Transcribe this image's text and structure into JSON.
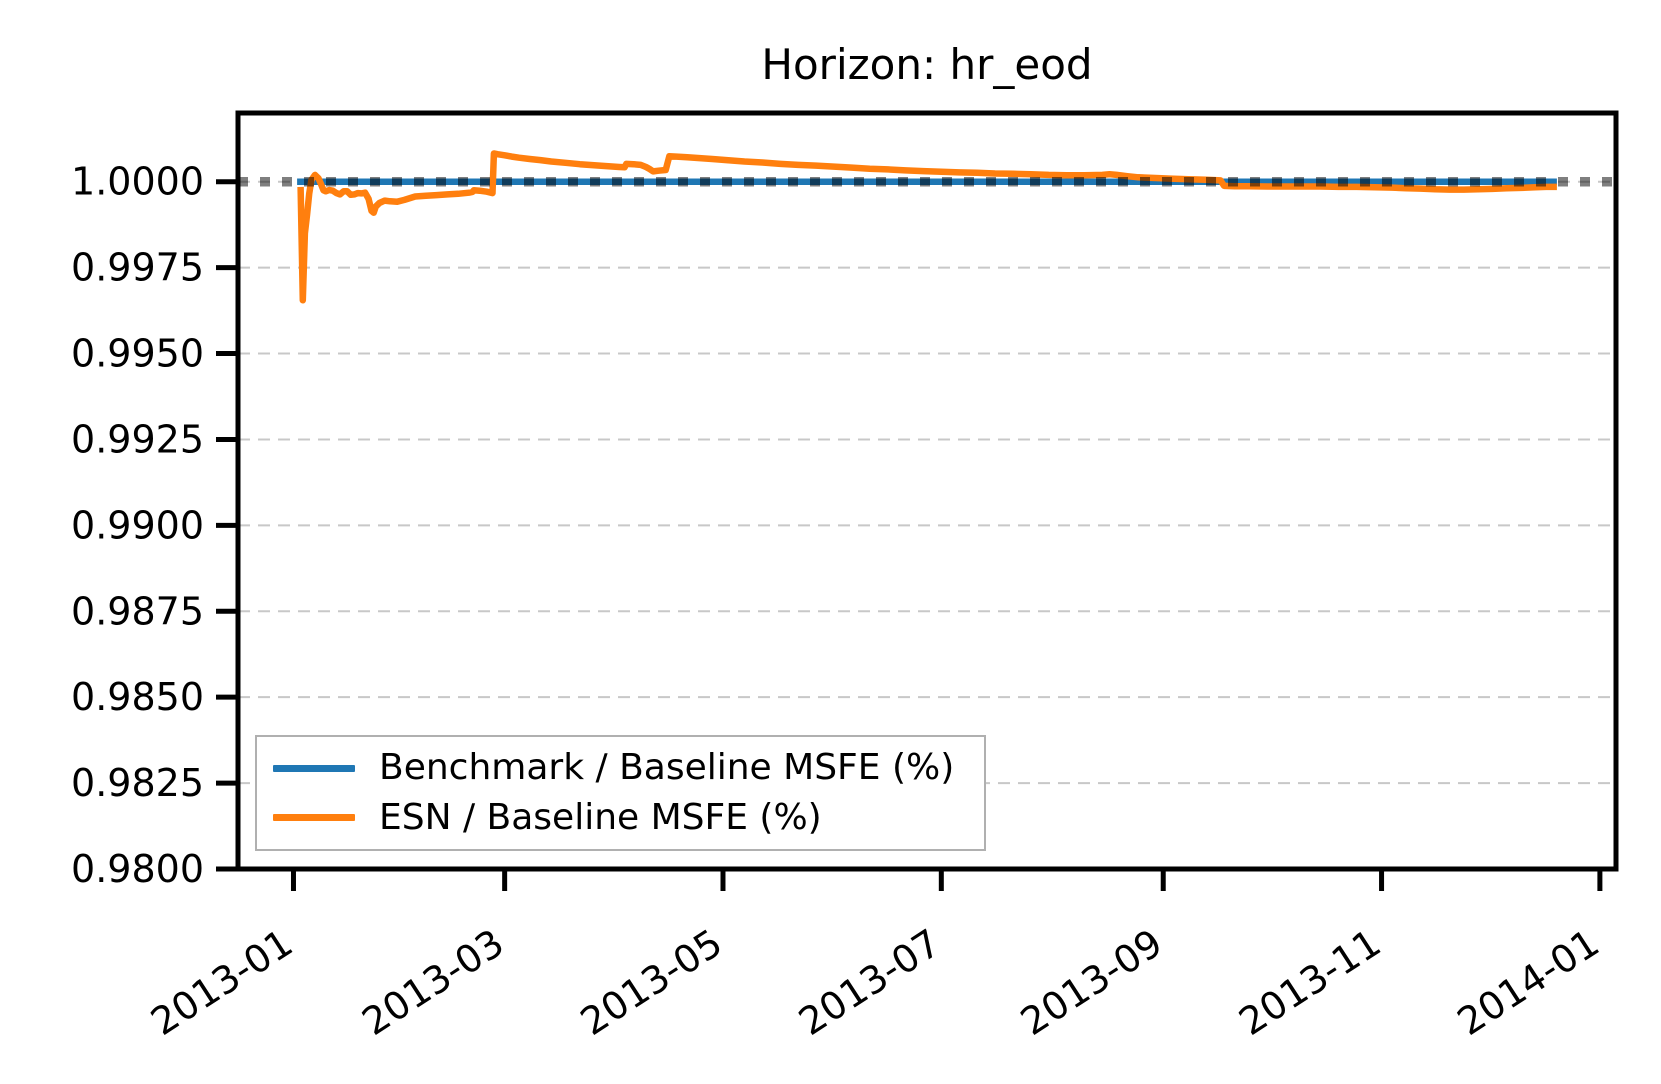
{
  "figure": {
    "title": "Horizon: hr_eod"
  },
  "chart_data": {
    "type": "line",
    "title": "Horizon: hr_eod",
    "xlabel": "",
    "ylabel": "",
    "x_unit": "days since 2013-01-01",
    "x_domain_days": [
      -15.5,
      369.5
    ],
    "x_ticks": [
      {
        "label": "2013-01",
        "day": 0
      },
      {
        "label": "2013-03",
        "day": 59
      },
      {
        "label": "2013-05",
        "day": 120
      },
      {
        "label": "2013-07",
        "day": 181
      },
      {
        "label": "2013-09",
        "day": 243
      },
      {
        "label": "2013-11",
        "day": 304
      },
      {
        "label": "2014-01",
        "day": 365
      }
    ],
    "ylim": [
      0.98,
      1.002
    ],
    "y_ticks": [
      "1.0000",
      "0.9975",
      "0.9950",
      "0.9925",
      "0.9900",
      "0.9875",
      "0.9850",
      "0.9825",
      "0.9800"
    ],
    "grid": {
      "horizontal": true,
      "vertical": false,
      "style": "dashed",
      "color": "#c8c8c8"
    },
    "reference_line": {
      "value": 1.0,
      "style": "dashed",
      "color": "rgba(0,0,0,0.5)"
    },
    "legend_position": "lower-left-inside",
    "series": [
      {
        "name": "Benchmark / Baseline MSFE (%)",
        "color": "#1f77b4",
        "points": [
          [
            1,
            1.0
          ],
          [
            353,
            1.0
          ]
        ]
      },
      {
        "name": "ESN / Baseline MSFE (%)",
        "color": "#ff7f0e",
        "points": [
          [
            2,
            0.99985
          ],
          [
            2.6,
            0.99655
          ],
          [
            3.2,
            0.9985
          ],
          [
            3.8,
            0.99905
          ],
          [
            4.4,
            0.99965
          ],
          [
            5,
            1.00005
          ],
          [
            6,
            1.0002
          ],
          [
            7,
            1.0001
          ],
          [
            7.6,
            0.99995
          ],
          [
            8.4,
            0.99975
          ],
          [
            9,
            0.99972
          ],
          [
            10,
            0.99976
          ],
          [
            11,
            0.99974
          ],
          [
            12,
            0.99967
          ],
          [
            13,
            0.99963
          ],
          [
            14,
            0.99972
          ],
          [
            15,
            0.99972
          ],
          [
            16,
            0.99962
          ],
          [
            17,
            0.99963
          ],
          [
            18,
            0.99967
          ],
          [
            19,
            0.99966
          ],
          [
            20,
            0.99968
          ],
          [
            21,
            0.9995
          ],
          [
            21.8,
            0.99915
          ],
          [
            22.4,
            0.9991
          ],
          [
            23,
            0.99928
          ],
          [
            24,
            0.99938
          ],
          [
            25.5,
            0.99945
          ],
          [
            27,
            0.99943
          ],
          [
            29,
            0.99942
          ],
          [
            31,
            0.99947
          ],
          [
            34,
            0.99957
          ],
          [
            37,
            0.99959
          ],
          [
            40,
            0.99961
          ],
          [
            43,
            0.99963
          ],
          [
            46,
            0.99965
          ],
          [
            49,
            0.99968
          ],
          [
            50,
            0.9997
          ],
          [
            50.4,
            0.99975
          ],
          [
            52,
            0.99974
          ],
          [
            54,
            0.99971
          ],
          [
            55.6,
            0.99967
          ],
          [
            56,
            1.00082
          ],
          [
            57,
            1.0008
          ],
          [
            59,
            1.00077
          ],
          [
            61,
            1.00073
          ],
          [
            63,
            1.0007
          ],
          [
            66,
            1.00066
          ],
          [
            69,
            1.00063
          ],
          [
            72,
            1.00059
          ],
          [
            76,
            1.00055
          ],
          [
            80,
            1.00051
          ],
          [
            84,
            1.00048
          ],
          [
            88,
            1.00045
          ],
          [
            91,
            1.00043
          ],
          [
            92.5,
            1.00042
          ],
          [
            93,
            1.00052
          ],
          [
            95,
            1.00051
          ],
          [
            97,
            1.00049
          ],
          [
            98.5,
            1.00043
          ],
          [
            99.5,
            1.00037
          ],
          [
            100.5,
            1.0003
          ],
          [
            102,
            1.00032
          ],
          [
            104,
            1.00034
          ],
          [
            105,
            1.00074
          ],
          [
            107,
            1.00073
          ],
          [
            110,
            1.00071
          ],
          [
            113,
            1.00069
          ],
          [
            117,
            1.00066
          ],
          [
            121,
            1.00063
          ],
          [
            126,
            1.00059
          ],
          [
            131,
            1.00056
          ],
          [
            136,
            1.00052
          ],
          [
            141,
            1.00049
          ],
          [
            146,
            1.00047
          ],
          [
            151,
            1.00044
          ],
          [
            156,
            1.00041
          ],
          [
            161,
            1.00038
          ],
          [
            166,
            1.00036
          ],
          [
            171,
            1.00033
          ],
          [
            176,
            1.00031
          ],
          [
            181,
            1.00029
          ],
          [
            186,
            1.00027
          ],
          [
            191,
            1.00026
          ],
          [
            196,
            1.00024
          ],
          [
            201,
            1.00023
          ],
          [
            206,
            1.00022
          ],
          [
            211,
            1.0002
          ],
          [
            216,
            1.00019
          ],
          [
            221,
            1.00019
          ],
          [
            226,
            1.0002
          ],
          [
            228,
            1.00022
          ],
          [
            230,
            1.0002
          ],
          [
            233,
            1.00016
          ],
          [
            236,
            1.00013
          ],
          [
            240,
            1.00011
          ],
          [
            245,
            1.00009
          ],
          [
            250,
            1.00007
          ],
          [
            255,
            1.00006
          ],
          [
            259,
            1.00004
          ],
          [
            260,
            0.99988
          ],
          [
            263,
            0.99987
          ],
          [
            267,
            0.99987
          ],
          [
            272,
            0.99986
          ],
          [
            277,
            0.99986
          ],
          [
            282,
            0.99986
          ],
          [
            287,
            0.99986
          ],
          [
            292,
            0.99985
          ],
          [
            297,
            0.99985
          ],
          [
            302,
            0.99984
          ],
          [
            307,
            0.99983
          ],
          [
            311,
            0.99981
          ],
          [
            315,
            0.9998
          ],
          [
            319,
            0.99978
          ],
          [
            323,
            0.99977
          ],
          [
            327,
            0.99977
          ],
          [
            331,
            0.99978
          ],
          [
            335,
            0.99979
          ],
          [
            339,
            0.99981
          ],
          [
            343,
            0.99982
          ],
          [
            347,
            0.99984
          ],
          [
            350,
            0.99985
          ],
          [
            353,
            0.99985
          ]
        ]
      }
    ]
  }
}
